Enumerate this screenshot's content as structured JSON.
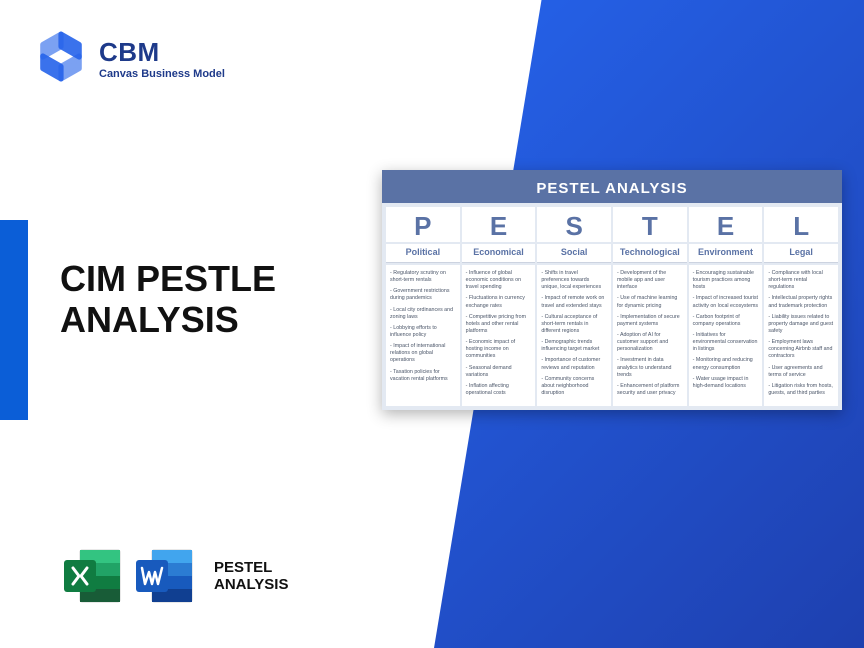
{
  "brand": {
    "name": "CBM",
    "tagline": "Canvas Business Model"
  },
  "title_line1": "CIM PESTLE",
  "title_line2": "ANALYSIS",
  "footer_label_line1": "PESTEL",
  "footer_label_line2": "ANALYSIS",
  "colors": {
    "gradient_start": "#2563eb",
    "gradient_end": "#1e40af",
    "accent_bar": "#0b5ed7",
    "brand_text": "#1e3a8a",
    "card_bg": "#e3e9f2",
    "card_header": "#5a72a5",
    "excel_green": "#107c41",
    "excel_light": "#21a366",
    "word_blue": "#2b579a",
    "word_light": "#41a5ee"
  },
  "pestel": {
    "title": "PESTEL ANALYSIS",
    "columns": [
      {
        "letter": "P",
        "name": "Political",
        "items": [
          "Regulatory scrutiny on short-term rentals",
          "Government restrictions during pandemics",
          "Local city ordinances and zoning laws",
          "Lobbying efforts to influence policy",
          "Impact of international relations on global operations",
          "Taxation policies for vacation rental platforms"
        ]
      },
      {
        "letter": "E",
        "name": "Economical",
        "items": [
          "Influence of global economic conditions on travel spending",
          "Fluctuations in currency exchange rates",
          "Competitive pricing from hotels and other rental platforms",
          "Economic impact of hosting income on communities",
          "Seasonal demand variations",
          "Inflation affecting operational costs"
        ]
      },
      {
        "letter": "S",
        "name": "Social",
        "items": [
          "Shifts in travel preferences towards unique, local experiences",
          "Impact of remote work on travel and extended stays",
          "Cultural acceptance of short-term rentals in different regions",
          "Demographic trends influencing target market",
          "Importance of customer reviews and reputation",
          "Community concerns about neighborhood disruption"
        ]
      },
      {
        "letter": "T",
        "name": "Technological",
        "items": [
          "Development of the mobile app and user interface",
          "Use of machine learning for dynamic pricing",
          "Implementation of secure payment systems",
          "Adoption of AI for customer support and personalization",
          "Investment in data analytics to understand trends",
          "Enhancement of platform security and user privacy"
        ]
      },
      {
        "letter": "E",
        "name": "Environment",
        "items": [
          "Encouraging sustainable tourism practices among hosts",
          "Impact of increased tourist activity on local ecosystems",
          "Carbon footprint of company operations",
          "Initiatives for environmental conservation in listings",
          "Monitoring and reducing energy consumption",
          "Water usage impact in high-demand locations"
        ]
      },
      {
        "letter": "L",
        "name": "Legal",
        "items": [
          "Compliance with local short-term rental regulations",
          "Intellectual property rights and trademark protection",
          "Liability issues related to property damage and guest safety",
          "Employment laws concerning Airbnb staff and contractors",
          "User agreements and terms of service",
          "Litigation risks from hosts, guests, and third parties"
        ]
      }
    ]
  }
}
